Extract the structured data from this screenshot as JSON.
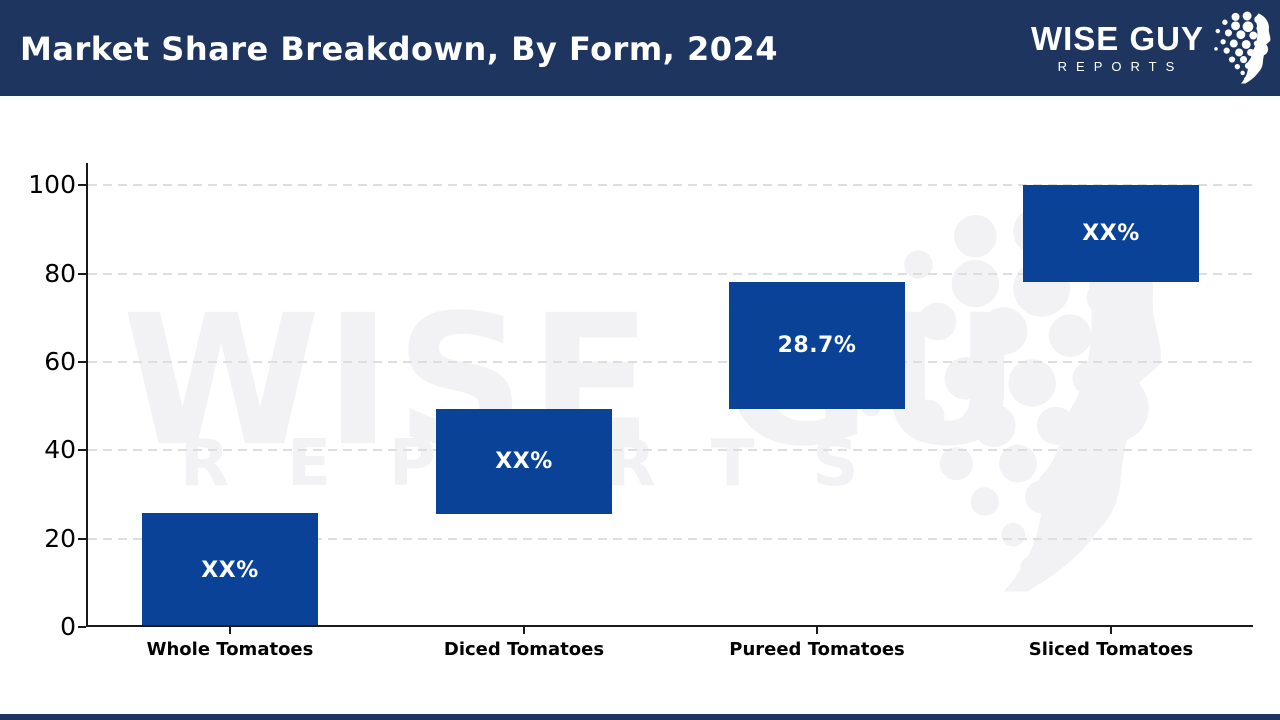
{
  "header": {
    "title": "Market Share Breakdown, By Form, 2024",
    "logo": {
      "line1": "WISE GUY",
      "line2": "REPORTS"
    }
  },
  "watermark": {
    "line1": "WISE GU",
    "line2": "REPORTS"
  },
  "chart_data": {
    "type": "bar",
    "variant": "waterfall",
    "title": "Market Share Breakdown, By Form, 2024",
    "categories": [
      "Whole Tomatoes",
      "Diced Tomatoes",
      "Pureed Tomatoes",
      "Sliced Tomatoes"
    ],
    "segments": [
      {
        "category": "Whole Tomatoes",
        "start": 0,
        "end": 25.8,
        "label": "XX%"
      },
      {
        "category": "Diced Tomatoes",
        "start": 25.7,
        "end": 49.4,
        "label": "XX%"
      },
      {
        "category": "Pureed Tomatoes",
        "start": 49.4,
        "end": 78.1,
        "label": "28.7%"
      },
      {
        "category": "Sliced Tomatoes",
        "start": 78.1,
        "end": 100,
        "label": "XX%"
      }
    ],
    "ylim": [
      0,
      100
    ],
    "yticks": [
      0,
      20,
      40,
      60,
      80,
      100
    ],
    "grid": "dashed-horizontal",
    "legend": "none",
    "bar_color": "#0a4298",
    "bar_label_color": "#ffffff",
    "header_color": "#1e3560",
    "watermark_color": "#f2f2f4"
  }
}
